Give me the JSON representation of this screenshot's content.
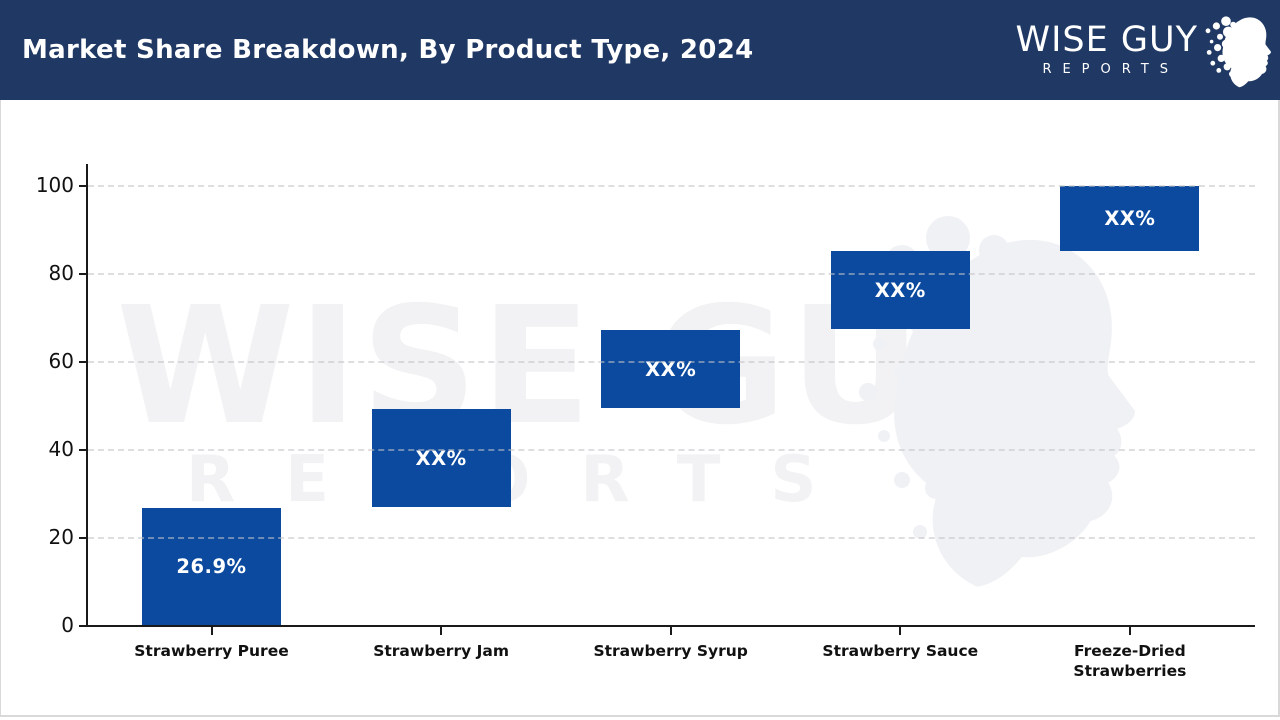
{
  "header": {
    "title": "Market Share Breakdown, By Product Type, 2024",
    "logo": {
      "line1": "WISE GUY",
      "line2": "REPORTS"
    }
  },
  "watermark": {
    "line1": "WISE GUY",
    "line2": "REPORTS"
  },
  "chart_data": {
    "type": "bar",
    "subtype": "waterfall-floating-bars",
    "title": "Market Share Breakdown, By Product Type, 2024",
    "categories": [
      "Strawberry Puree",
      "Strawberry Jam",
      "Strawberry Syrup",
      "Strawberry Sauce",
      "Freeze-Dried Strawberries"
    ],
    "segments": [
      {
        "category": "Strawberry Puree",
        "start": 0,
        "end": 26.9,
        "label": "26.9%"
      },
      {
        "category": "Strawberry Jam",
        "start": 27.0,
        "end": 49.3,
        "label": "XX%"
      },
      {
        "category": "Strawberry Syrup",
        "start": 49.5,
        "end": 67.3,
        "label": "XX%"
      },
      {
        "category": "Strawberry Sauce",
        "start": 67.5,
        "end": 85.2,
        "label": "XX%"
      },
      {
        "category": "Freeze-Dried Strawberries",
        "start": 85.2,
        "end": 100.0,
        "label": "XX%"
      }
    ],
    "xlabel": "",
    "ylabel": "",
    "yticks": [
      0,
      20,
      40,
      60,
      80,
      100
    ],
    "ylim": [
      0,
      105
    ],
    "grid": "dashed-horizontal",
    "legend": "none",
    "bar_color": "#0b4a9e",
    "bar_label_color": "#ffffff",
    "axis_color": "#1a1a1a",
    "header_bg": "#1f3864"
  }
}
